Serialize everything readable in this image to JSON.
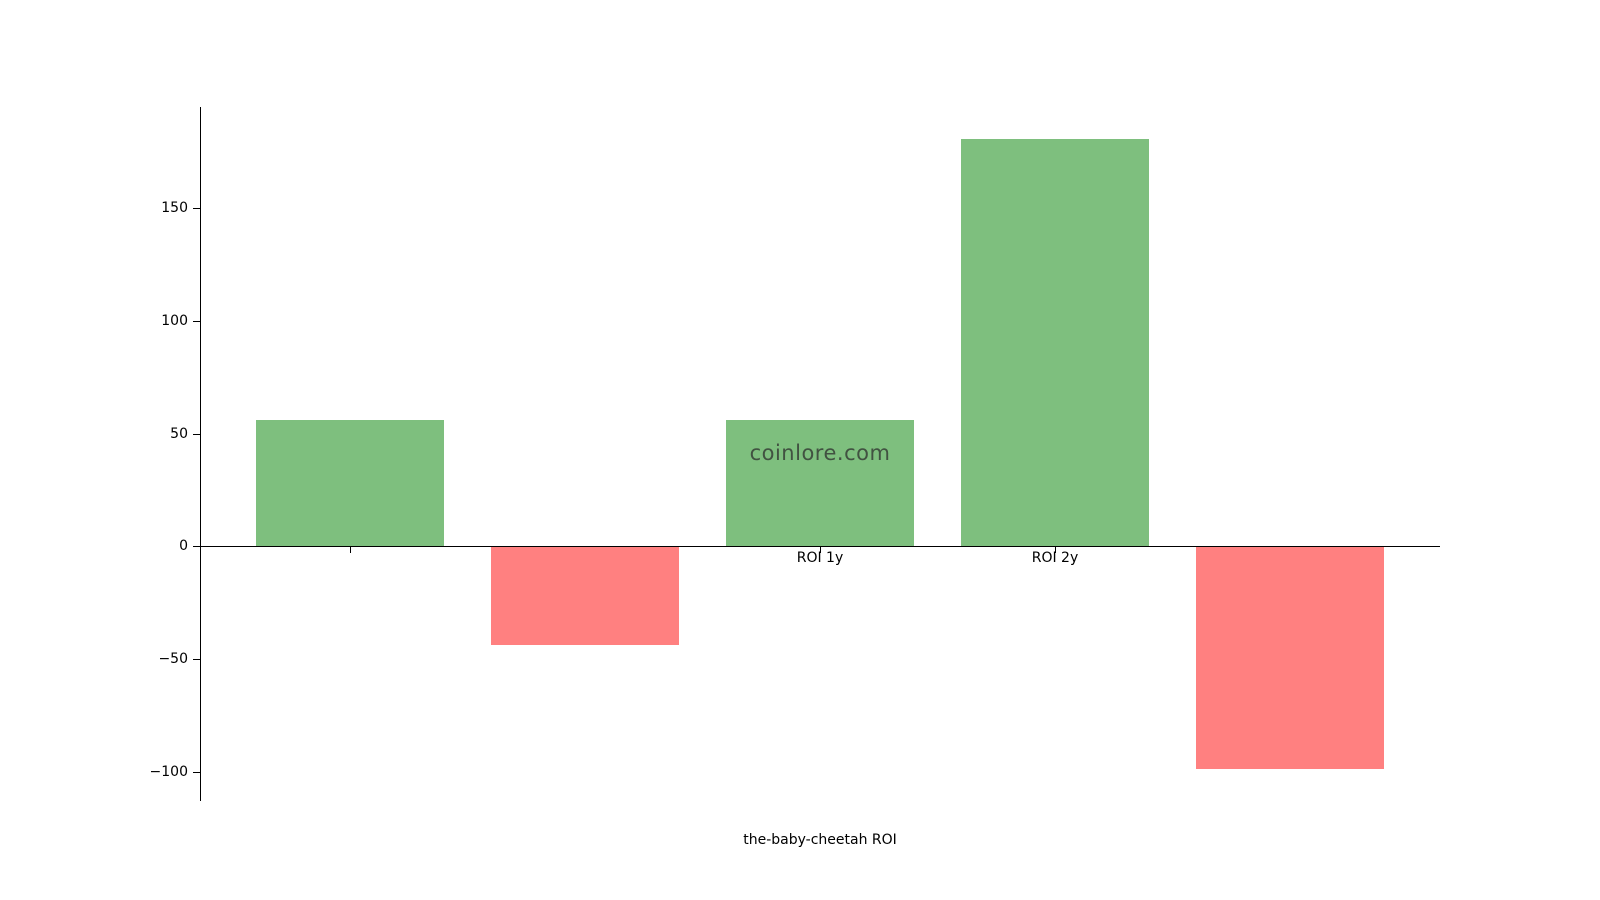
{
  "page": {
    "background_color": "#ffffff"
  },
  "watermark": {
    "text": "coinlore.com",
    "color": "rgba(45,45,45,0.75)"
  },
  "chart_data": {
    "type": "bar",
    "title": "",
    "xlabel": "the-baby-cheetah ROI",
    "ylabel": "",
    "categories": [
      "",
      "",
      "ROI 1y",
      "ROI 2y",
      ""
    ],
    "values": [
      56,
      -44,
      56,
      181,
      -99
    ],
    "series": [
      {
        "name": "the-baby-cheetah ROI %",
        "values": [
          56,
          -44,
          56,
          181,
          -99
        ]
      }
    ],
    "bar_colors": [
      "#7ebf7e",
      "#ff8080",
      "#7ebf7e",
      "#7ebf7e",
      "#ff8080"
    ],
    "positive_color": "#7ebf7e",
    "negative_color": "#ff8080",
    "axis_color": "#000000",
    "ylim": [
      -113,
      195
    ],
    "yticks": [
      150,
      100,
      50,
      0,
      -50,
      -100
    ],
    "ytick_labels": [
      "150",
      "100",
      "50",
      "0",
      "−50",
      "−100"
    ],
    "xticks_at_bar_index": [
      0,
      2,
      3
    ],
    "grid": false,
    "legend_position": "none",
    "baseline": 0
  }
}
